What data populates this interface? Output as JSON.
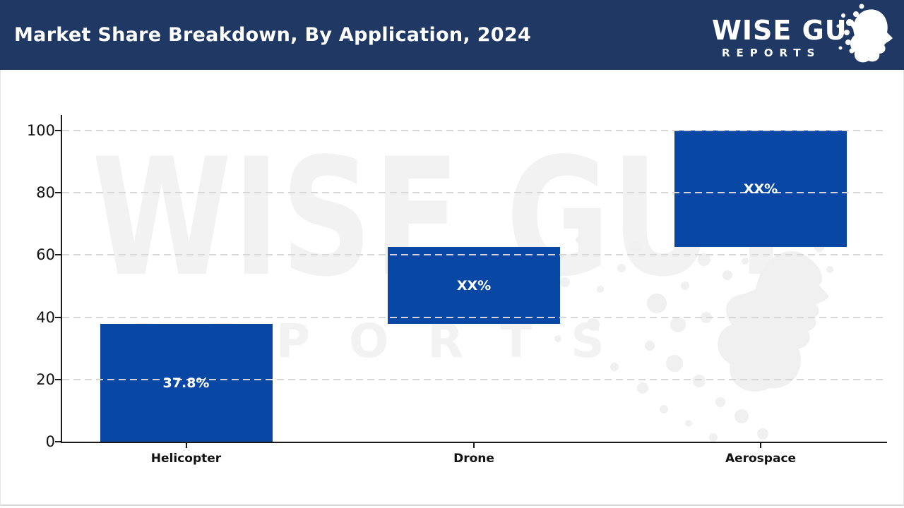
{
  "header": {
    "title": "Market Share Breakdown, By Application, 2024",
    "bg_color": "#1f3864",
    "logo": {
      "line1": "WISE GUY",
      "line2": "REPORTS"
    }
  },
  "watermark": {
    "line1": "WISE GUY",
    "line2": "REPORTS"
  },
  "chart_data": {
    "type": "bar",
    "subtype": "waterfall",
    "title": "Market Share Breakdown, By Application, 2024",
    "categories": [
      "Helicopter",
      "Drone",
      "Aerospace"
    ],
    "segments": [
      {
        "category": "Helicopter",
        "start": 0,
        "end": 37.8,
        "label": "37.8%"
      },
      {
        "category": "Drone",
        "start": 37.8,
        "end": 62.5,
        "label": "XX%"
      },
      {
        "category": "Aerospace",
        "start": 62.5,
        "end": 100,
        "label": "XX%"
      }
    ],
    "xlabel": "",
    "ylabel": "",
    "ylim": [
      0,
      100
    ],
    "yticks": [
      0,
      20,
      40,
      60,
      80,
      100
    ],
    "grid": "horizontal-dashed",
    "legend": "none",
    "bar_color": "#0847a3",
    "bar_label_color": "#ffffff"
  }
}
